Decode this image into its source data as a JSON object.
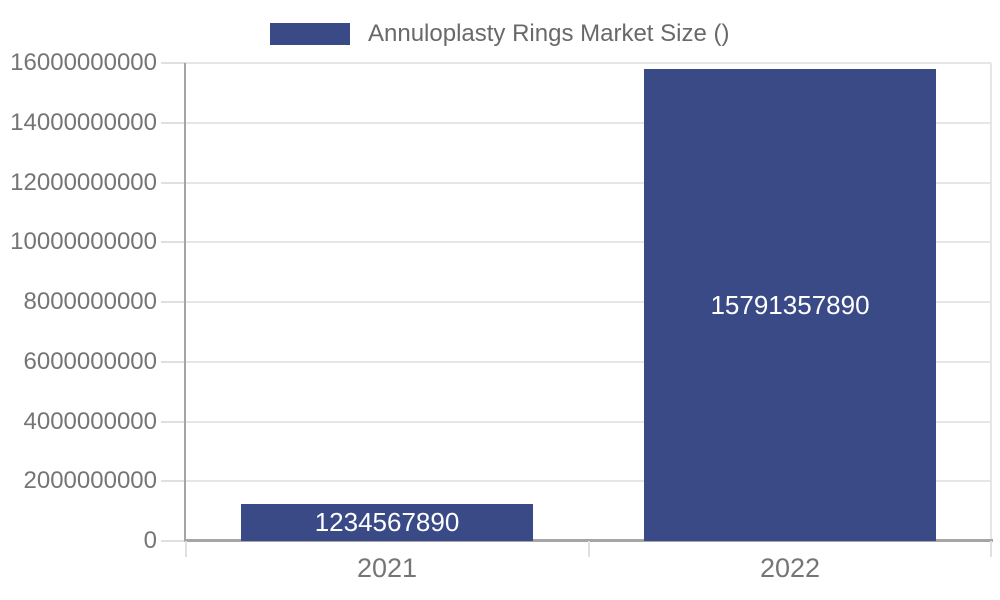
{
  "chart_data": {
    "type": "bar",
    "title": "Annuloplasty Rings Market Size ()",
    "categories": [
      "2021",
      "2022"
    ],
    "series": [
      {
        "name": "Annuloplasty Rings Market Size ()",
        "values": [
          1234567890,
          15791357890
        ]
      }
    ],
    "value_labels": [
      "1234567890",
      "15791357890"
    ],
    "xlabel": "",
    "ylabel": "",
    "ylim": [
      0,
      16000000000
    ],
    "ytick_values": [
      0,
      2000000000,
      4000000000,
      6000000000,
      8000000000,
      10000000000,
      12000000000,
      14000000000,
      16000000000
    ],
    "ytick_labels": [
      "0",
      "2000000000",
      "4000000000",
      "6000000000",
      "8000000000",
      "10000000000",
      "12000000000",
      "14000000000",
      "16000000000"
    ],
    "grid": true,
    "legend_position": "top-center"
  },
  "colors": {
    "background": "#ffffff",
    "bar": "#3a4a86",
    "grid": "#e6e6e6",
    "tick": "#e0e0e0",
    "axis": "#a5a5a5",
    "axis_label": "#757575",
    "legend_text": "#696969",
    "value_label": "#ffffff"
  }
}
